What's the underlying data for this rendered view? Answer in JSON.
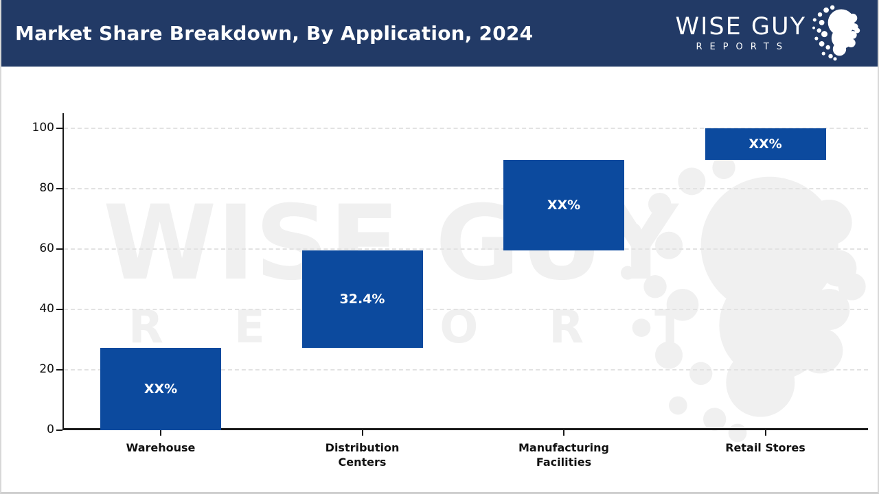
{
  "header": {
    "title": "Market Share Breakdown, By Application, 2024",
    "background_color": "#223a66",
    "logo": {
      "line1": "WISE GUY",
      "line2": "REPORTS"
    }
  },
  "watermark": {
    "line1": "WISE GUY",
    "line2": "R E P O R T S"
  },
  "chart_data": {
    "type": "bar",
    "subtype": "waterfall",
    "title": "Market Share Breakdown, By Application, 2024",
    "categories": [
      "Warehouse",
      "Distribution Centers",
      "Manufacturing Facilities",
      "Retail Stores"
    ],
    "bars": [
      {
        "category": "Warehouse",
        "label_lines": [
          "Warehouse"
        ],
        "start": 0,
        "end": 27.2,
        "label": "XX%"
      },
      {
        "category": "Distribution Centers",
        "label_lines": [
          "Distribution",
          "Centers"
        ],
        "start": 27.2,
        "end": 59.6,
        "label": "32.4%"
      },
      {
        "category": "Manufacturing Facilities",
        "label_lines": [
          "Manufacturing",
          "Facilities"
        ],
        "start": 59.6,
        "end": 89.5,
        "label": "XX%"
      },
      {
        "category": "Retail Stores",
        "label_lines": [
          "Retail Stores"
        ],
        "start": 89.5,
        "end": 100,
        "label": "XX%"
      }
    ],
    "bar_color": "#0c4a9e",
    "bar_label_color": "#ffffff",
    "y_ticks": [
      0,
      20,
      40,
      60,
      80,
      100
    ],
    "ylim": [
      0,
      105
    ],
    "xlabel": "",
    "ylabel": "",
    "grid": "horizontal-dashed",
    "legend": "none"
  }
}
